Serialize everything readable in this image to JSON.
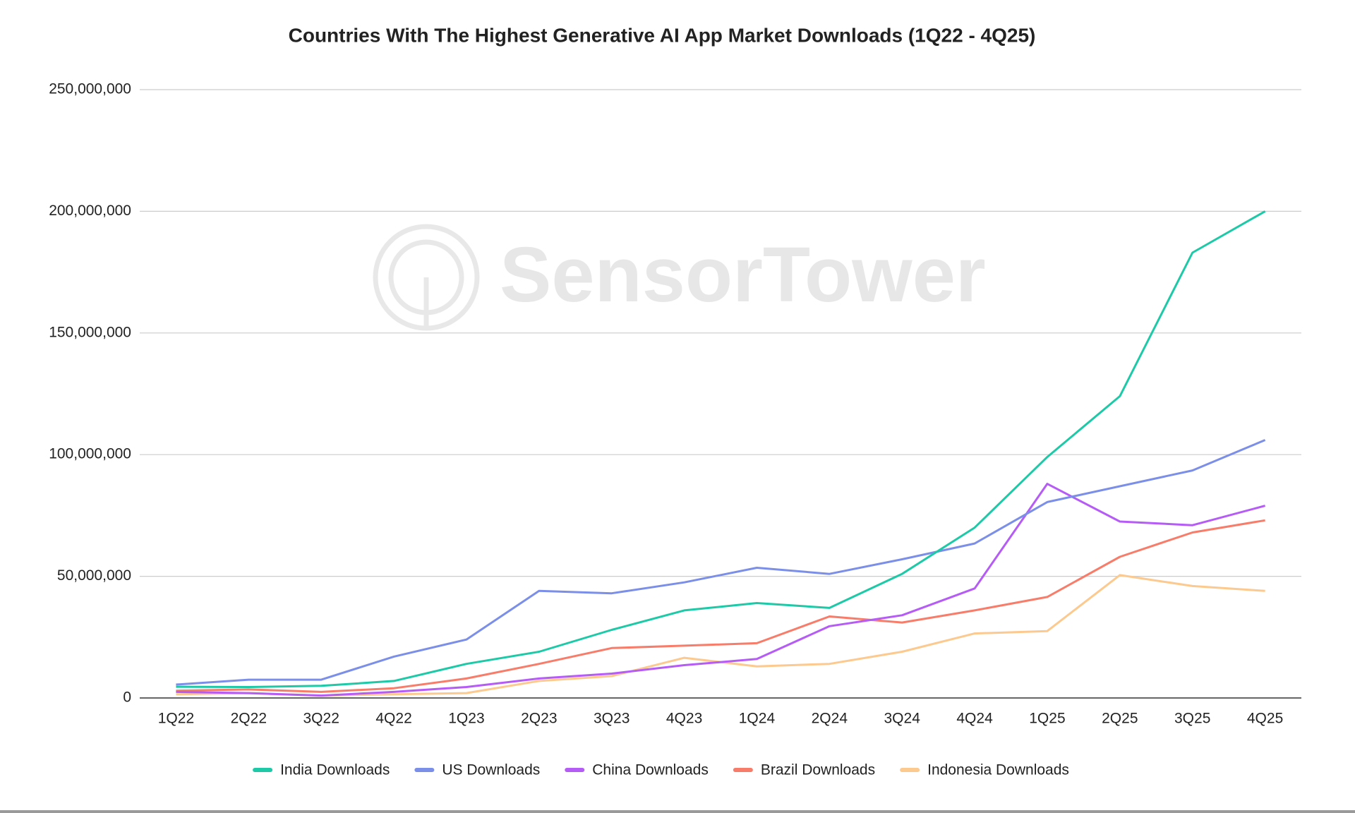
{
  "chart_data": {
    "type": "line",
    "title": "Countries With The Highest Generative AI App Market Downloads (1Q22 - 4Q25)",
    "watermark": "SensorTower",
    "categories": [
      "1Q22",
      "2Q22",
      "3Q22",
      "4Q22",
      "1Q23",
      "2Q23",
      "3Q23",
      "4Q23",
      "1Q24",
      "2Q24",
      "3Q24",
      "4Q24",
      "1Q25",
      "2Q25",
      "3Q25",
      "4Q25"
    ],
    "series": [
      {
        "name": "India Downloads",
        "color": "#1ec9a8",
        "values": [
          4600000,
          4500000,
          5000000,
          7000000,
          14000000,
          19000000,
          28000000,
          36000000,
          39000000,
          37000000,
          51000000,
          70000000,
          99000000,
          124000000,
          183000000,
          200000000
        ]
      },
      {
        "name": "US Downloads",
        "color": "#7b8fe8",
        "values": [
          5500000,
          7500000,
          7500000,
          17000000,
          24000000,
          44000000,
          43000000,
          47500000,
          53500000,
          51000000,
          57000000,
          63500000,
          80500000,
          87000000,
          93500000,
          106000000
        ]
      },
      {
        "name": "China Downloads",
        "color": "#b65cf6",
        "values": [
          2500000,
          2000000,
          1000000,
          2500000,
          4500000,
          8000000,
          10000000,
          13500000,
          16000000,
          29500000,
          34000000,
          45000000,
          88000000,
          72500000,
          71000000,
          79000000
        ]
      },
      {
        "name": "Brazil Downloads",
        "color": "#f77d6a",
        "values": [
          3000000,
          3500000,
          2500000,
          4000000,
          8000000,
          14000000,
          20500000,
          21500000,
          22500000,
          33500000,
          31000000,
          36000000,
          41500000,
          58000000,
          68000000,
          73000000
        ]
      },
      {
        "name": "Indonesia Downloads",
        "color": "#fcc98f",
        "values": [
          1500000,
          2000000,
          1000000,
          1500000,
          2000000,
          7000000,
          9000000,
          16500000,
          13000000,
          14000000,
          19000000,
          26500000,
          27500000,
          50500000,
          46000000,
          44000000
        ]
      }
    ],
    "ylim": [
      0,
      250000000
    ],
    "yticks": [
      0,
      {
        "value": 50000000,
        "label": "50,000,000"
      },
      {
        "value": 100000000,
        "label": "100,000,000"
      },
      {
        "value": 150000000,
        "label": "150,000,000"
      },
      {
        "value": 200000000,
        "label": "200,000,000"
      },
      {
        "value": 250000000,
        "label": "250,000,000"
      }
    ],
    "grid": true,
    "legend": "bottom"
  }
}
